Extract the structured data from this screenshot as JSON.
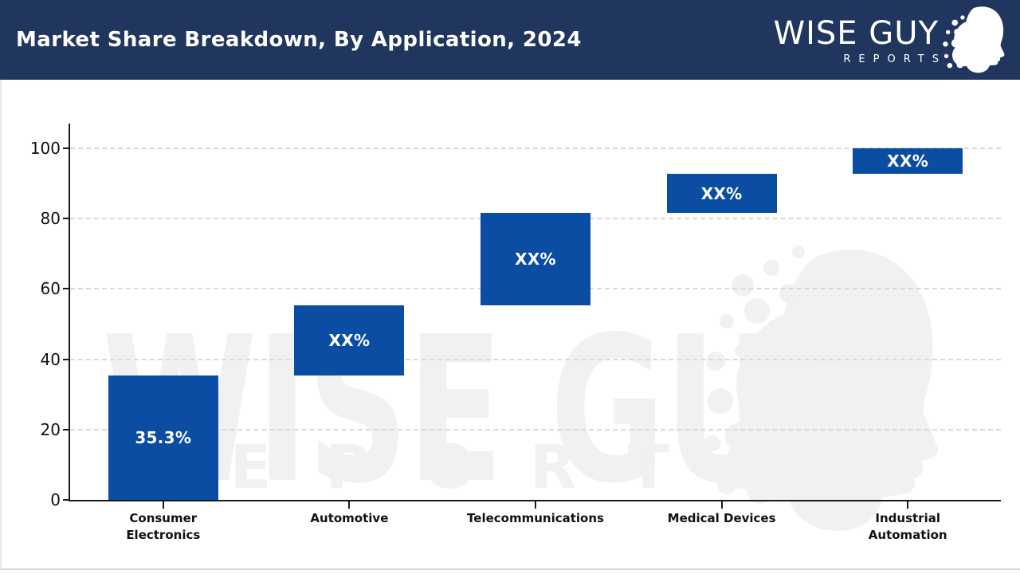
{
  "header": {
    "title": "Market Share Breakdown, By Application, 2024",
    "logo_line1": "WISE GUY",
    "logo_line2": "REPORTS"
  },
  "watermark": {
    "line1": "WISE GUY",
    "line2": "REPORTS"
  },
  "chart_data": {
    "type": "bar",
    "subtype": "waterfall-style floating segments, cumulative to 100",
    "title": "Market Share Breakdown, By Application, 2024",
    "categories": [
      "Consumer Electronics",
      "Automotive",
      "Telecommunications",
      "Medical Devices",
      "Industrial Automation"
    ],
    "display_tick_labels": [
      "Consumer\nElectronics",
      "Automotive",
      "Telecommunications",
      "Medical Devices",
      "Industrial\nAutomation"
    ],
    "bars": [
      {
        "category": "Consumer Electronics",
        "start": 0,
        "end": 35.3,
        "label": "35.3%"
      },
      {
        "category": "Automotive",
        "start": 35.3,
        "end": 55.4,
        "label": "XX%"
      },
      {
        "category": "Telecommunications",
        "start": 55.4,
        "end": 81.6,
        "label": "XX%"
      },
      {
        "category": "Medical Devices",
        "start": 81.6,
        "end": 92.7,
        "label": "XX%"
      },
      {
        "category": "Industrial Automation",
        "start": 92.7,
        "end": 100,
        "label": "XX%"
      }
    ],
    "xlabel": "",
    "ylabel": "",
    "ylim": [
      0,
      100
    ],
    "yticks": [
      0,
      20,
      40,
      60,
      80,
      100
    ],
    "grid": "horizontal dashed, light gray",
    "legend": "none",
    "bar_color": "#0b4da2",
    "bar_label_color": "#ffffff"
  },
  "colors": {
    "header_bg": "#21365e",
    "bar": "#0b4da2",
    "gridline": "#d9d9d9",
    "axis": "#1a1a1a",
    "watermark": "#f0f1f3",
    "text": "#111111",
    "title_text": "#ffffff"
  }
}
